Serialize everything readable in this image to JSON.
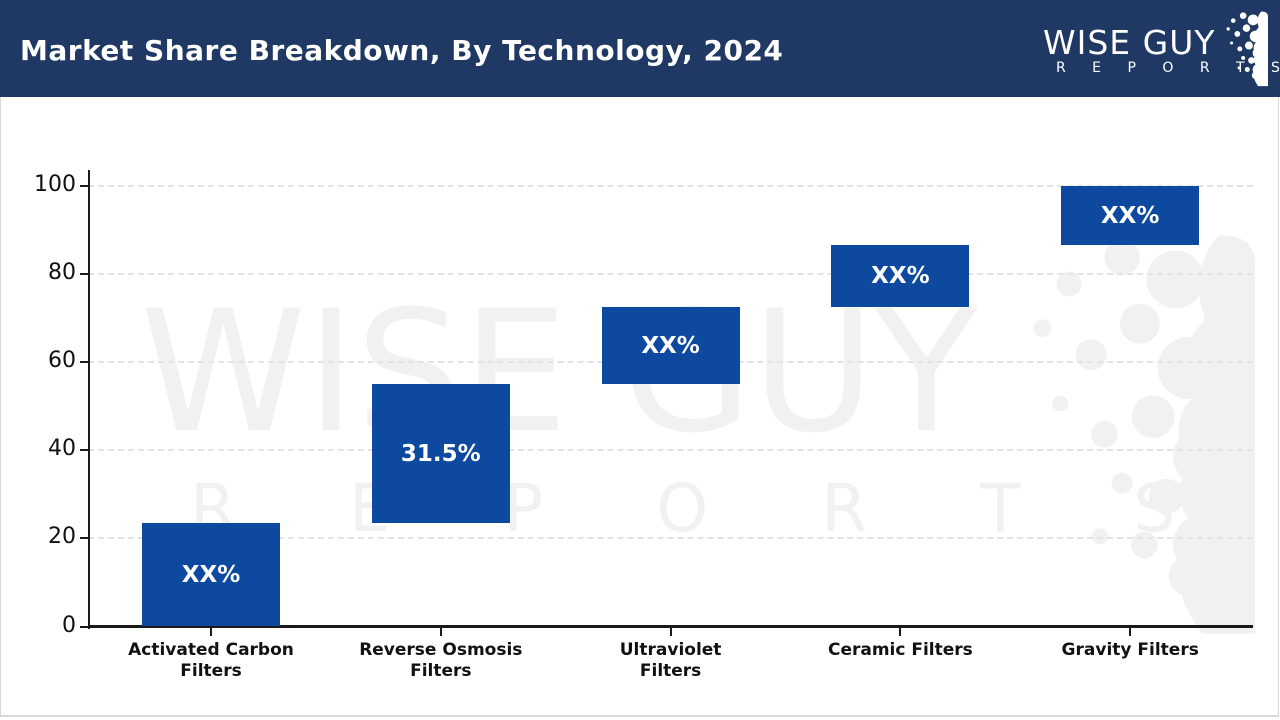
{
  "header": {
    "title": "Market Share Breakdown, By Technology, 2024",
    "logo_line1": "WISE GUY",
    "logo_line2": "R E P O R T S"
  },
  "watermark": {
    "line1": "WISE GUY",
    "line2": "R E P O R T S"
  },
  "colors": {
    "header_bg": "#1f3864",
    "bar": "#0d4a9f",
    "bar_label": "#ffffff",
    "grid": "#e3e3e3",
    "axis": "#1a1a1a"
  },
  "chart_data": {
    "type": "bar",
    "subtype": "waterfall",
    "title": "Market Share Breakdown, By Technology, 2024",
    "categories": [
      "Activated Carbon Filters",
      "Reverse Osmosis Filters",
      "Ultraviolet Filters",
      "Ceramic Filters",
      "Gravity Filters"
    ],
    "category_lines": [
      [
        "Activated Carbon",
        "Filters"
      ],
      [
        "Reverse Osmosis",
        "Filters"
      ],
      [
        "Ultraviolet",
        "Filters"
      ],
      [
        "Ceramic Filters"
      ],
      [
        "Gravity Filters"
      ]
    ],
    "segments": [
      {
        "category": "Activated Carbon Filters",
        "start": 0,
        "end": 23.5,
        "label": "XX%"
      },
      {
        "category": "Reverse Osmosis Filters",
        "start": 23.5,
        "end": 55,
        "label": "31.5%"
      },
      {
        "category": "Ultraviolet Filters",
        "start": 55,
        "end": 72.5,
        "label": "XX%"
      },
      {
        "category": "Ceramic Filters",
        "start": 72.5,
        "end": 86.5,
        "label": "XX%"
      },
      {
        "category": "Gravity Filters",
        "start": 86.5,
        "end": 100,
        "label": "XX%"
      }
    ],
    "y_ticks": [
      0,
      20,
      40,
      60,
      80,
      100
    ],
    "ylim": [
      0,
      100
    ],
    "xlabel": "",
    "ylabel": "",
    "grid": "horizontal-dashed",
    "legend": "none",
    "bar_color": "#0d4a9f",
    "label_color": "#ffffff"
  }
}
